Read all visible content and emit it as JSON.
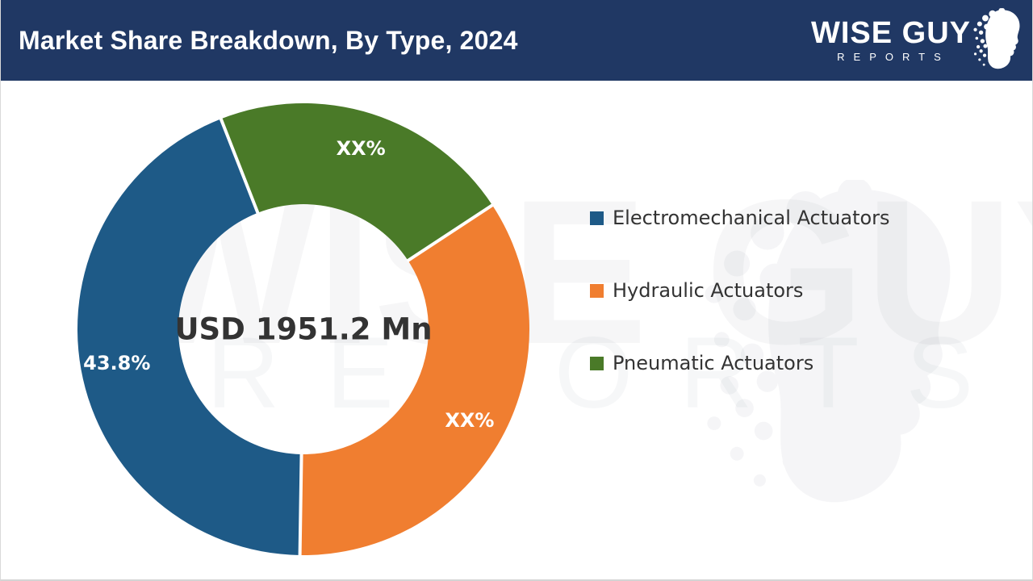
{
  "header": {
    "title": "Market Share Breakdown, By Type, 2024",
    "bg_color": "#203864",
    "logo": {
      "line1": "WISE GUY",
      "line2": "REPORTS"
    }
  },
  "watermark": {
    "line1": "WISE GUY",
    "line2": "REPORTS"
  },
  "chart_data": {
    "type": "donut",
    "title": "Market Share Breakdown, By Type, 2024",
    "center_label": "USD 1951.2 Mn",
    "center_label_color": "#333333",
    "slice_label_color": "#ffffff",
    "start_angle_deg": 180.9,
    "direction": "clockwise",
    "segments": [
      {
        "label": "Electromechanical Actuators",
        "percent": 43.8,
        "slice_label": "43.8%",
        "color": "#1E5A87"
      },
      {
        "label": "Pneumatic Actuators",
        "percent": 21.7,
        "slice_label": "XX%",
        "color": "#4A7A28"
      },
      {
        "label": "Hydraulic Actuators",
        "percent": 34.5,
        "slice_label": "XX%",
        "color": "#F07E30"
      }
    ]
  },
  "legend": {
    "items": [
      {
        "label": "Electromechanical Actuators",
        "color": "#1E5A87"
      },
      {
        "label": "Hydraulic Actuators",
        "color": "#F07E30"
      },
      {
        "label": "Pneumatic Actuators",
        "color": "#4A7A28"
      }
    ]
  }
}
